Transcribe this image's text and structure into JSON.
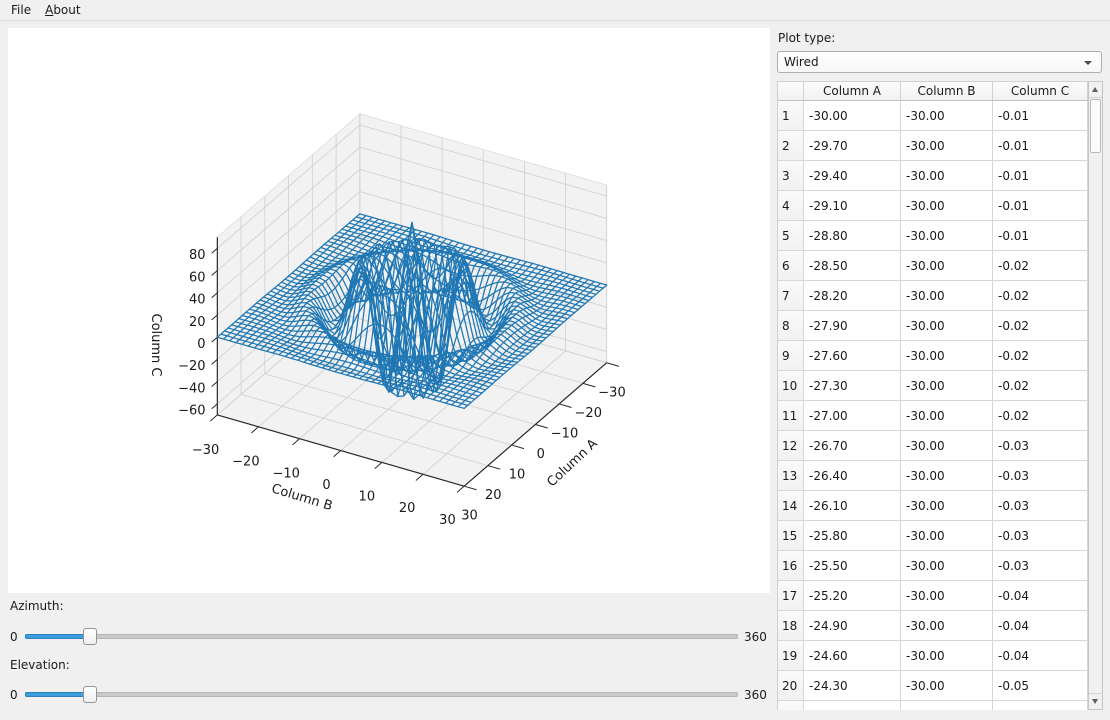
{
  "menu": {
    "items": [
      {
        "id": "file",
        "label": "File",
        "mnemonic": ""
      },
      {
        "id": "about",
        "label": "About",
        "mnemonic": "A"
      }
    ]
  },
  "plot": {
    "xlabel": "Column B",
    "ylabel": "Column A",
    "zlabel": "Column C",
    "xticks": [
      -30,
      -20,
      -10,
      0,
      10,
      20,
      30
    ],
    "yticks": [
      -30,
      -20,
      -10,
      0,
      10,
      20,
      30
    ],
    "zticks": [
      80,
      60,
      40,
      20,
      0,
      -20,
      -40,
      -60
    ],
    "wire_color": "#1f77b4",
    "pane_color": "#f2f2f2",
    "grid_color": "#cfcfcf",
    "spine_color": "#2b2b2b"
  },
  "chart_data": {
    "type": "wireframe3d",
    "xlabel": "Column B",
    "ylabel": "Column A",
    "zlabel": "Column C",
    "x_range": [
      -30,
      30
    ],
    "y_range": [
      -30,
      30
    ],
    "z_tick_range": [
      -60,
      80
    ],
    "view": {
      "elev_deg": 30,
      "azim_deg": -60
    },
    "surface": {
      "form": "radial_ripple",
      "formula": "z = amp * cos(freq*r) * exp(-(r/decay)^2), r = sqrt(x^2+y^2)",
      "amp": 80,
      "freq": 0.55,
      "decay": 14,
      "grid_step": 1.5,
      "zlim": [
        -70,
        90
      ]
    }
  },
  "plot_type": {
    "label": "Plot type:",
    "value": "Wired"
  },
  "table": {
    "headers": [
      "Column A",
      "Column B",
      "Column C"
    ],
    "rows": [
      [
        "1",
        "-30.00",
        "-30.00",
        "-0.01"
      ],
      [
        "2",
        "-29.70",
        "-30.00",
        "-0.01"
      ],
      [
        "3",
        "-29.40",
        "-30.00",
        "-0.01"
      ],
      [
        "4",
        "-29.10",
        "-30.00",
        "-0.01"
      ],
      [
        "5",
        "-28.80",
        "-30.00",
        "-0.01"
      ],
      [
        "6",
        "-28.50",
        "-30.00",
        "-0.02"
      ],
      [
        "7",
        "-28.20",
        "-30.00",
        "-0.02"
      ],
      [
        "8",
        "-27.90",
        "-30.00",
        "-0.02"
      ],
      [
        "9",
        "-27.60",
        "-30.00",
        "-0.02"
      ],
      [
        "10",
        "-27.30",
        "-30.00",
        "-0.02"
      ],
      [
        "11",
        "-27.00",
        "-30.00",
        "-0.02"
      ],
      [
        "12",
        "-26.70",
        "-30.00",
        "-0.03"
      ],
      [
        "13",
        "-26.40",
        "-30.00",
        "-0.03"
      ],
      [
        "14",
        "-26.10",
        "-30.00",
        "-0.03"
      ],
      [
        "15",
        "-25.80",
        "-30.00",
        "-0.03"
      ],
      [
        "16",
        "-25.50",
        "-30.00",
        "-0.03"
      ],
      [
        "17",
        "-25.20",
        "-30.00",
        "-0.04"
      ],
      [
        "18",
        "-24.90",
        "-30.00",
        "-0.04"
      ],
      [
        "19",
        "-24.60",
        "-30.00",
        "-0.04"
      ],
      [
        "20",
        "-24.30",
        "-30.00",
        "-0.05"
      ],
      [
        "",
        "",
        "",
        ""
      ]
    ]
  },
  "sliders": {
    "azimuth": {
      "label": "Azimuth:",
      "min": "0",
      "max": "360",
      "value": 0
    },
    "elevation": {
      "label": "Elevation:",
      "min": "0",
      "max": "360",
      "value": 0
    }
  },
  "colors": {
    "accent_blue": "#3b9ddb",
    "wire_blue": "#1f77b4",
    "window_bg": "#f0f0f0"
  }
}
